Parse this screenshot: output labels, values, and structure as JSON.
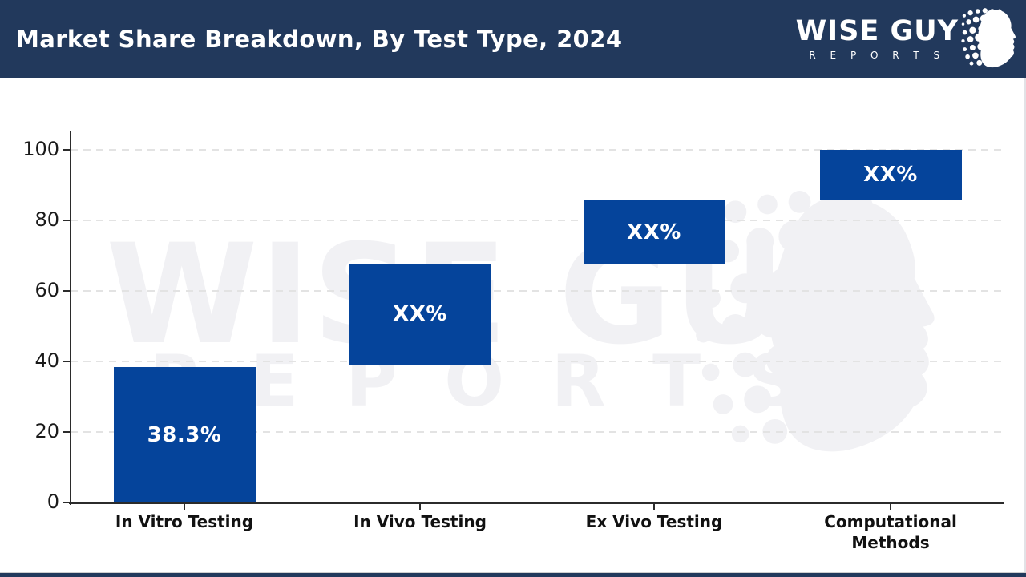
{
  "header": {
    "title": "Market Share Breakdown, By Test Type, 2024",
    "logo": {
      "line1": "WISE GUY",
      "line2": "R E P O R T S"
    }
  },
  "watermark": {
    "line1": "WISE GUY",
    "line2": "R E P O R T S"
  },
  "colors": {
    "header_bg": "#22395C",
    "bar": "#05449B",
    "bar_label": "#FFFFFF",
    "grid": "#E3E3E3",
    "axis": "#2B2B2B",
    "tick_text": "#1A1A1A",
    "watermark": "#F1F1F4",
    "footer_bar": "#22395C"
  },
  "chart_data": {
    "type": "bar",
    "subtype": "floating-waterfall",
    "title": "Market Share Breakdown, By Test Type, 2024",
    "categories": [
      "In Vitro Testing",
      "In Vivo Testing",
      "Ex Vivo Testing",
      "Computational Methods"
    ],
    "segments": [
      {
        "category": "In Vitro Testing",
        "start": 0,
        "end": 38.3,
        "label": "38.3%"
      },
      {
        "category": "In Vivo Testing",
        "start": 38.9,
        "end": 67.7,
        "label": "XX%"
      },
      {
        "category": "Ex Vivo Testing",
        "start": 67.5,
        "end": 85.7,
        "label": "XX%"
      },
      {
        "category": "Computational Methods",
        "start": 85.7,
        "end": 100,
        "label": "XX%"
      }
    ],
    "yticks": [
      0,
      20,
      40,
      60,
      80,
      100
    ],
    "ylim": [
      0,
      100
    ],
    "xlabel": "",
    "ylabel": "",
    "grid": {
      "axis": "y",
      "style": "dashed"
    },
    "legend": null
  }
}
